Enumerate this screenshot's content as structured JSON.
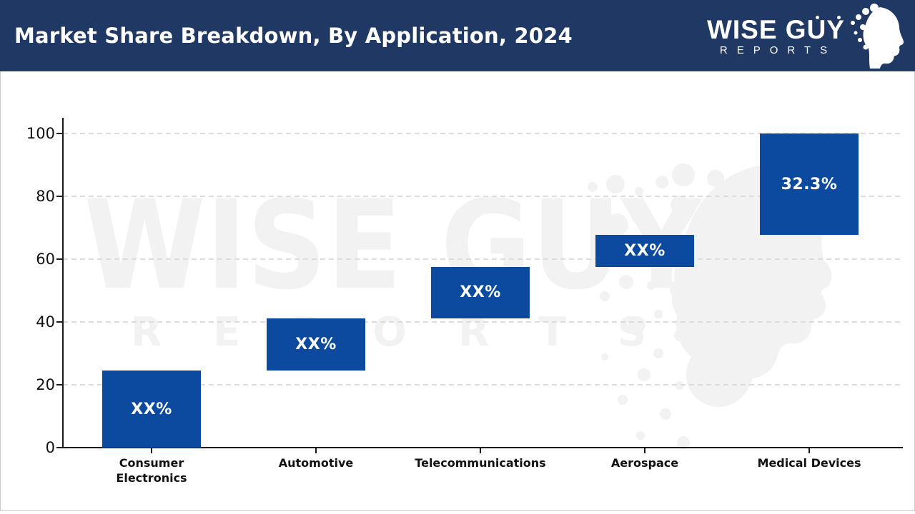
{
  "header": {
    "title": "Market Share Breakdown, By Application, 2024",
    "logo": {
      "name": "WISE GUY",
      "sub": "REPORTS"
    }
  },
  "watermark": {
    "line1": "WISE GUY",
    "line2": "REPORTS"
  },
  "colors": {
    "header_bg": "#203864",
    "bar": "#0b4a9e",
    "grid": "#dcdcdc",
    "axis": "#1a1a1a",
    "bar_label": "#ffffff",
    "watermark": "#f2f2f2",
    "title": "#ffffff"
  },
  "chart_data": {
    "type": "bar",
    "variant": "floating-segment waterfall (cumulative market share)",
    "title": "Market Share Breakdown, By Application, 2024",
    "categories": [
      "Consumer Electronics",
      "Automotive",
      "Telecommunications",
      "Aerospace",
      "Medical Devices"
    ],
    "category_display": [
      "Consumer\nElectronics",
      "Automotive",
      "Telecommunications",
      "Aerospace",
      "Medical Devices"
    ],
    "series": [
      {
        "name": "Consumer Electronics",
        "start": 0,
        "end": 24.5,
        "share_pct": 24.5,
        "label": "XX%"
      },
      {
        "name": "Automotive",
        "start": 24.5,
        "end": 41.2,
        "share_pct": 16.7,
        "label": "XX%"
      },
      {
        "name": "Telecommunications",
        "start": 41.2,
        "end": 57.5,
        "share_pct": 16.3,
        "label": "XX%"
      },
      {
        "name": "Aerospace",
        "start": 57.5,
        "end": 67.7,
        "share_pct": 10.2,
        "label": "XX%"
      },
      {
        "name": "Medical Devices",
        "start": 67.7,
        "end": 100,
        "share_pct": 32.3,
        "label": "32.3%"
      }
    ],
    "xlabel": "",
    "ylabel": "",
    "ylim": [
      0,
      100
    ],
    "yticks": [
      0,
      20,
      40,
      60,
      80,
      100
    ],
    "grid": "horizontal-dashed",
    "legend": "none",
    "bar_color": "#0b4a9e"
  }
}
